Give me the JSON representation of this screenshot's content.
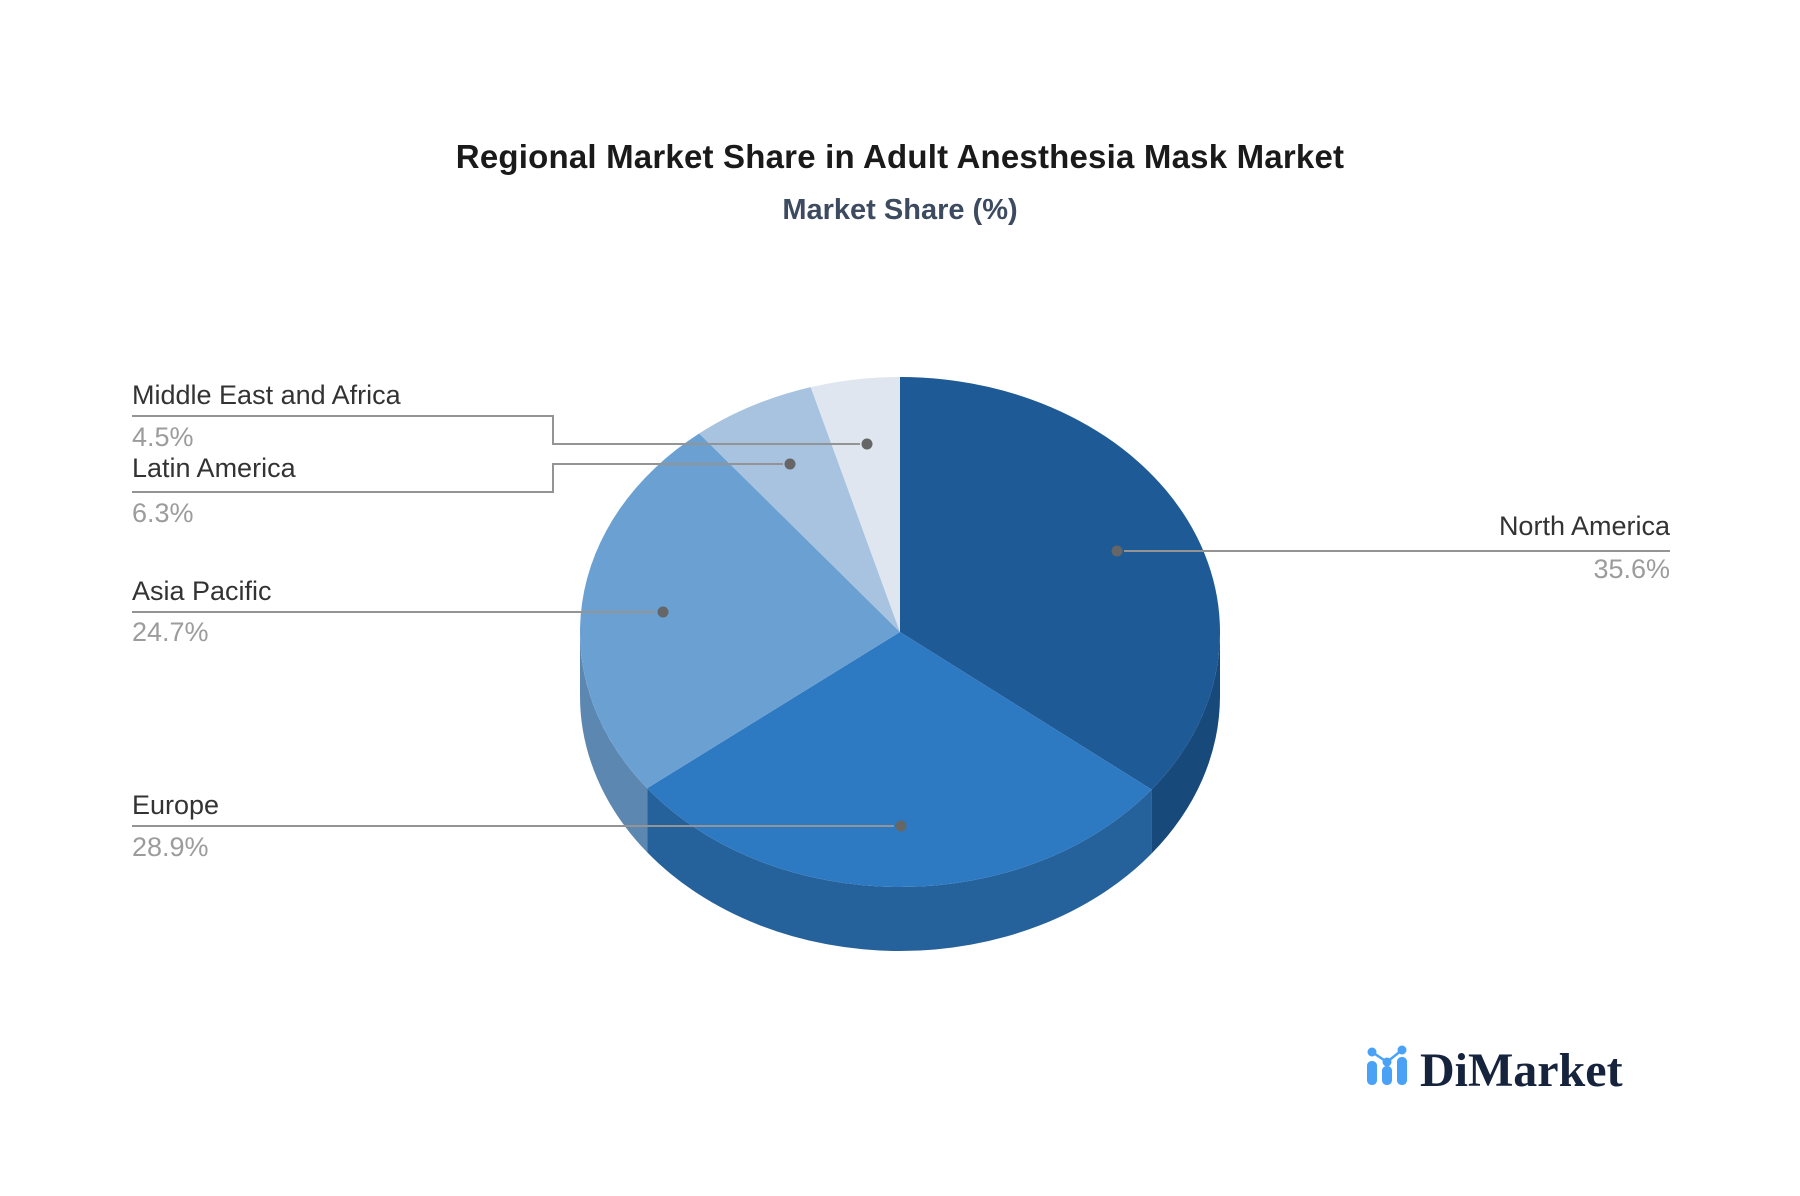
{
  "header": {
    "title": "Regional Market Share in Adult Anesthesia Mask Market",
    "subtitle": "Market Share (%)"
  },
  "chart_data": {
    "type": "pie",
    "style": "3d",
    "title": "Regional Market Share in Adult Anesthesia Mask Market",
    "subtitle": "Market Share (%)",
    "unit": "%",
    "start_angle": "12-oclock",
    "direction": "clockwise",
    "legend_position": "none-callout-labels",
    "labels": [
      "North America",
      "Europe",
      "Asia Pacific",
      "Latin America",
      "Middle East and Africa"
    ],
    "values": [
      35.6,
      28.9,
      24.7,
      6.3,
      4.5
    ],
    "slice_colors": [
      "#1D5A96",
      "#2E7AC2",
      "#6BA0D2",
      "#A7C3DF",
      "#DFE6EF"
    ],
    "slice_side_colors": [
      "#17497B",
      "#25619A",
      "#5B87B1",
      "#8FA8C4",
      "#C2CBD8"
    ]
  },
  "callouts": {
    "left": [
      {
        "name": "Middle East and Africa",
        "pct": "4.5%"
      },
      {
        "name": "Latin America",
        "pct": "6.3%"
      },
      {
        "name": "Asia Pacific",
        "pct": "24.7%"
      },
      {
        "name": "Europe",
        "pct": "28.9%"
      }
    ],
    "right": [
      {
        "name": "North America",
        "pct": "35.6%"
      }
    ]
  },
  "brand": {
    "name": "DiMarket",
    "icon": "bar-chart-logo-icon",
    "icon_color": "#4AA2F6",
    "text_color": "#16233C"
  },
  "palette": {
    "leader_line": "#949494",
    "leader_dot": "#666666",
    "title_color": "#1a1a1a",
    "subtitle_color": "#3d4b60",
    "label_name_color": "#333333",
    "label_pct_color": "#9c9c9c",
    "background": "#ffffff"
  }
}
